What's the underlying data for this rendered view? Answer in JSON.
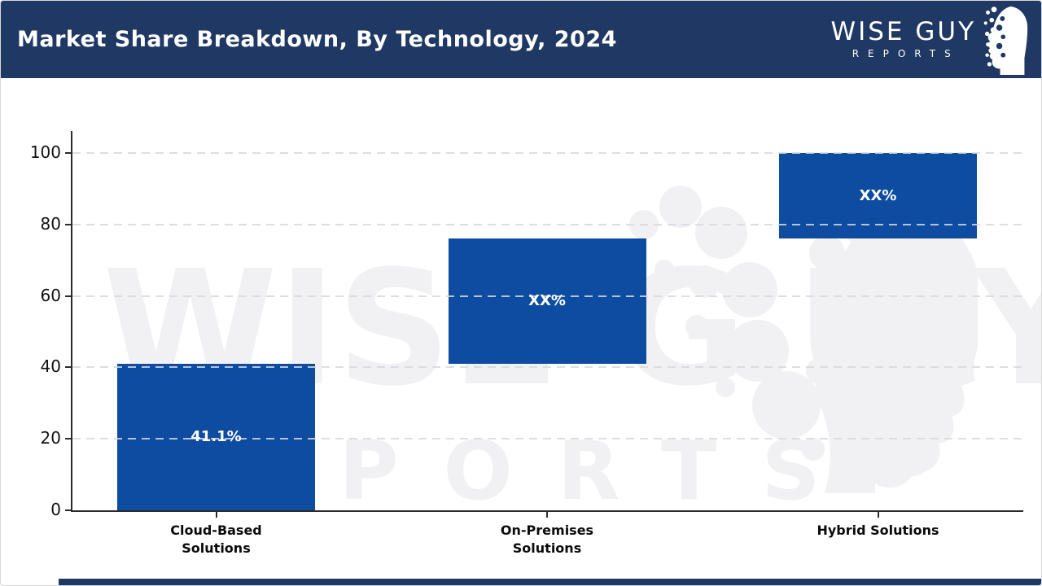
{
  "header": {
    "title": "Market Share Breakdown, By Technology, 2024",
    "brand": {
      "line1": "WISE GUY",
      "line2": "REPORTS"
    },
    "bg_color": "#1f3864",
    "text_color": "#ffffff"
  },
  "watermark": {
    "word1": "WISE",
    "word2": "GUY",
    "word3": "REPORTS"
  },
  "chart_data": {
    "type": "bar",
    "subtype": "stacked-waterfall",
    "title": "Market Share Breakdown, By Technology, 2024",
    "categories": [
      "Cloud-Based Solutions",
      "On-Premises Solutions",
      "Hybrid Solutions"
    ],
    "categories_lines": [
      [
        "Cloud-Based",
        "Solutions"
      ],
      [
        "On-Premises",
        "Solutions"
      ],
      [
        "Hybrid Solutions"
      ]
    ],
    "segments": [
      {
        "category": "Cloud-Based Solutions",
        "start": 0,
        "end": 41.1,
        "label": "41.1%"
      },
      {
        "category": "On-Premises Solutions",
        "start": 41.1,
        "end": 76,
        "label": "XX%"
      },
      {
        "category": "Hybrid Solutions",
        "start": 76,
        "end": 100,
        "label": "XX%"
      }
    ],
    "y_ticks": [
      0,
      20,
      40,
      60,
      80,
      100
    ],
    "ylim": [
      0,
      106
    ],
    "xlabel": "",
    "ylabel": "",
    "grid": "horizontal-dashed",
    "legend": "none",
    "bar_color": "#0d4ca0",
    "bar_label_color": "#ffffff",
    "axis_color": "#2b2b2b",
    "grid_color": "#d5d8dd"
  }
}
